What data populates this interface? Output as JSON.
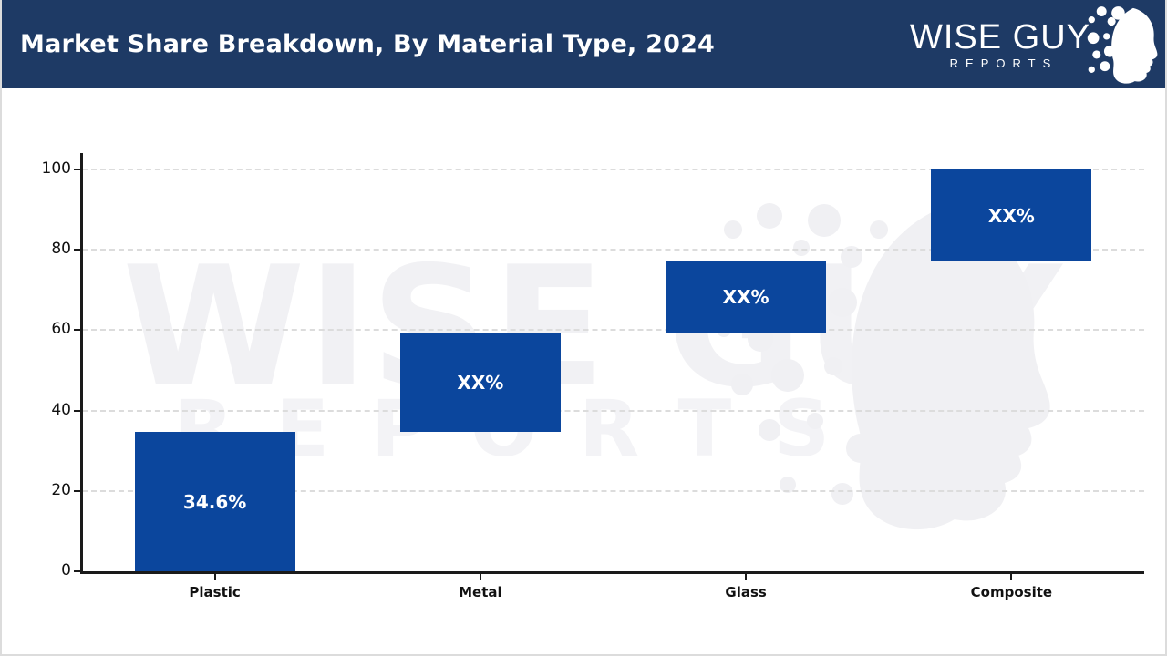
{
  "header": {
    "title": "Market Share Breakdown, By Material Type, 2024",
    "logo": {
      "wordmark": "WISE GUY",
      "sub": "REPORTS"
    }
  },
  "watermark": {
    "wordmark": "WISE GUY",
    "sub": "REPORTS"
  },
  "chart_data": {
    "type": "bar",
    "subtype": "waterfall",
    "title": "Market Share Breakdown, By Material Type, 2024",
    "categories": [
      "Plastic",
      "Metal",
      "Glass",
      "Composite"
    ],
    "series": [
      {
        "name": "Market share (%)",
        "segments": [
          {
            "category": "Plastic",
            "start": 0,
            "end": 34.6,
            "label": "34.6%"
          },
          {
            "category": "Metal",
            "start": 34.6,
            "end": 59.4,
            "label": "XX%"
          },
          {
            "category": "Glass",
            "start": 59.4,
            "end": 77.0,
            "label": "XX%"
          },
          {
            "category": "Composite",
            "start": 77.0,
            "end": 100,
            "label": "XX%"
          }
        ]
      }
    ],
    "bar_labels": [
      "34.6%",
      "XX%",
      "XX%",
      "XX%"
    ],
    "xlabel": "",
    "ylabel": "",
    "ylim": [
      0,
      100
    ],
    "yticks": [
      0,
      20,
      40,
      60,
      80,
      100
    ],
    "grid": {
      "horizontal": true,
      "style": "dashed"
    },
    "legend": "none",
    "bar_color": "#0B469D",
    "bar_label_color": "#FFFFFF"
  },
  "colors": {
    "header_bg": "#1E3A65",
    "body_bg": "#FFFFFF",
    "bar": "#0B469D",
    "axis": "#1A1A1A",
    "grid": "#DCDCDC",
    "watermark": "#F1F1F4",
    "card_border": "#DCDCDC",
    "title_text": "#FFFFFF"
  }
}
